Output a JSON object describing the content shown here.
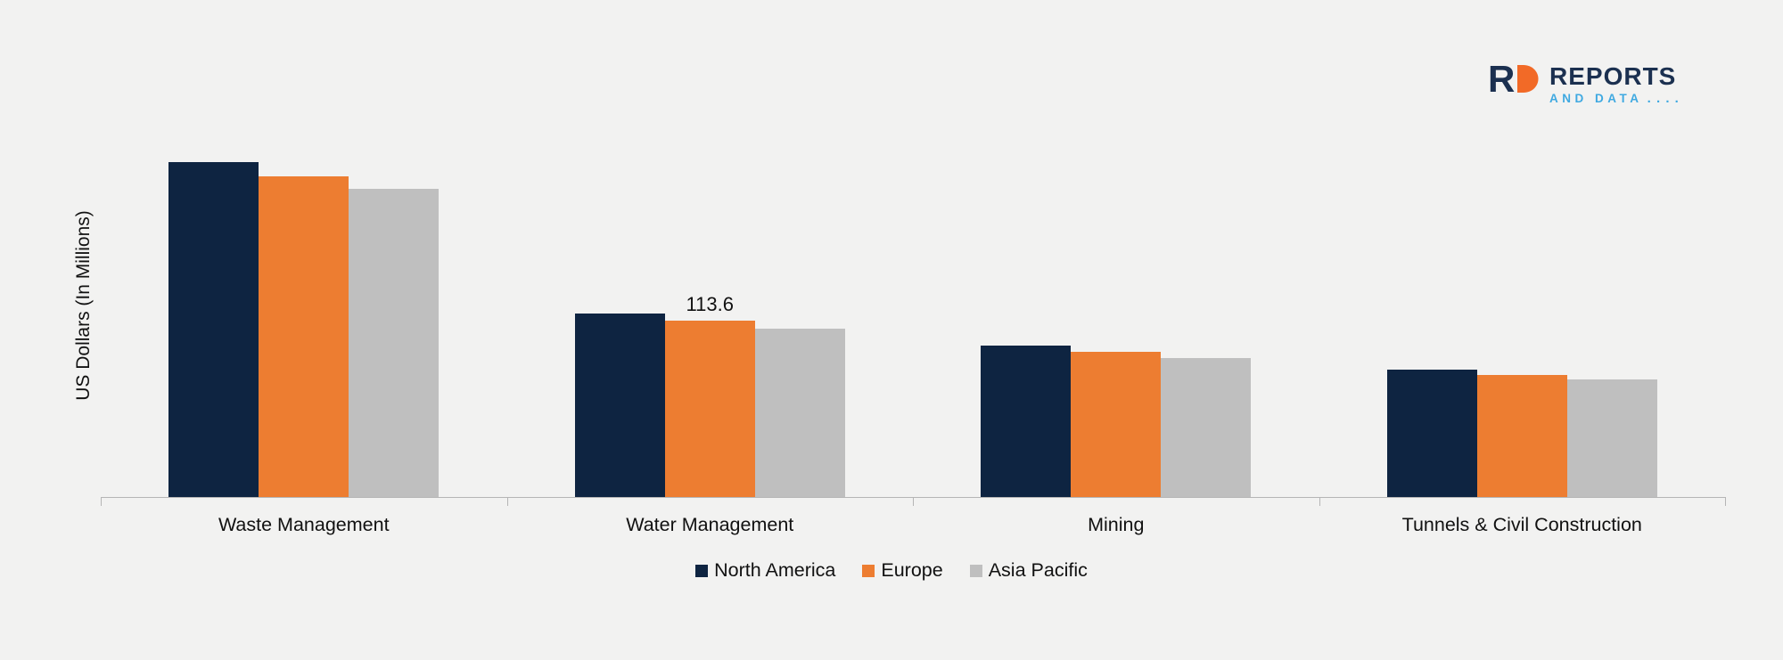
{
  "background": "#f2f2f1",
  "logo": {
    "monogram_r": "R",
    "title": "REPORTS",
    "subtitle": "AND DATA",
    "dots": " . . . .",
    "colors": {
      "navy": "#1b3050",
      "orange": "#f26a27",
      "blue": "#3fa9e1"
    }
  },
  "chart_data": {
    "type": "bar",
    "title": "",
    "xlabel": "",
    "ylabel": "US Dollars (In Millions)",
    "categories": [
      "Waste Management",
      "Water Management",
      "Mining",
      "Tunnels & Civil Construction"
    ],
    "series": [
      {
        "name": "North America",
        "color": "#0e2441",
        "values": [
          215.5,
          118.0,
          97.7,
          82.0
        ]
      },
      {
        "name": "Europe",
        "color": "#ed7d31",
        "values": [
          206.7,
          113.6,
          93.5,
          78.6
        ]
      },
      {
        "name": "Asia Pacific",
        "color": "#bfbfbf",
        "values": [
          198.5,
          108.3,
          89.3,
          75.5
        ]
      }
    ],
    "data_labels": [
      {
        "category_index": 1,
        "series_index": 1,
        "text": "113.6"
      }
    ],
    "ylim": [
      0,
      240
    ],
    "grid": false,
    "legend_position": "bottom",
    "axis_color": "#b5b5b5"
  }
}
